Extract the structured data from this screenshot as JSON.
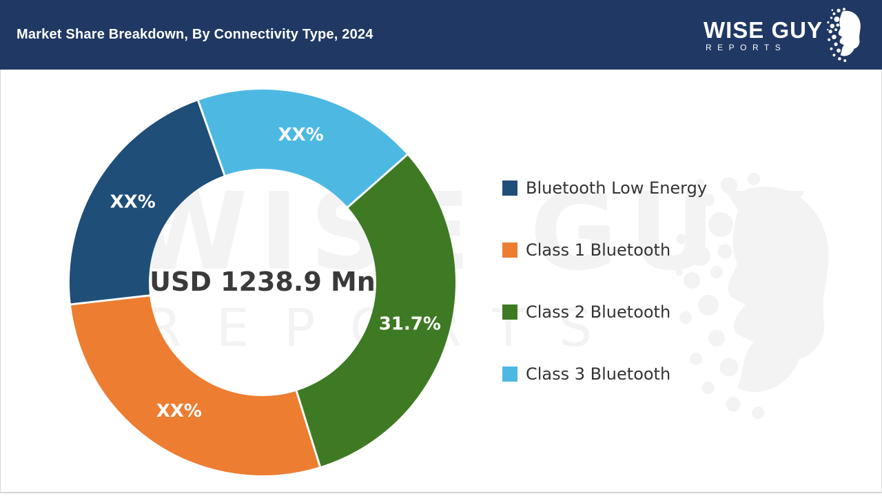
{
  "header": {
    "title": "Market Share Breakdown, By Connectivity Type, 2024",
    "logo": {
      "line1": "WISE GUY",
      "line2": "REPORTS"
    }
  },
  "watermark": {
    "line1": "WISE GUY",
    "line2": "REPORTS"
  },
  "chart_data": {
    "type": "pie",
    "subtype": "donut",
    "title": "Market Share Breakdown, By Connectivity Type, 2024",
    "center_label": "USD 1238.9 Mn",
    "categories": [
      "Bluetooth Low Energy",
      "Class 1 Bluetooth",
      "Class 2 Bluetooth",
      "Class 3 Bluetooth"
    ],
    "values_pct": [
      21.4,
      28.0,
      31.7,
      18.9
    ],
    "slice_labels": [
      "XX%",
      "XX%",
      "31.7%",
      "XX%"
    ],
    "colors": [
      "#1F4E79",
      "#ED7D31",
      "#3E7A24",
      "#4DB9E3"
    ],
    "start_angle_deg": 109.5,
    "direction": "counterclockwise",
    "legend_position": "right"
  },
  "colors": {
    "header_bg": "#203864",
    "card_border": "#d9d9d9",
    "slice_label_text": "#ffffff",
    "center_text": "#3a3a3a",
    "legend_text": "#333333",
    "watermark": "#f3f3f3"
  }
}
